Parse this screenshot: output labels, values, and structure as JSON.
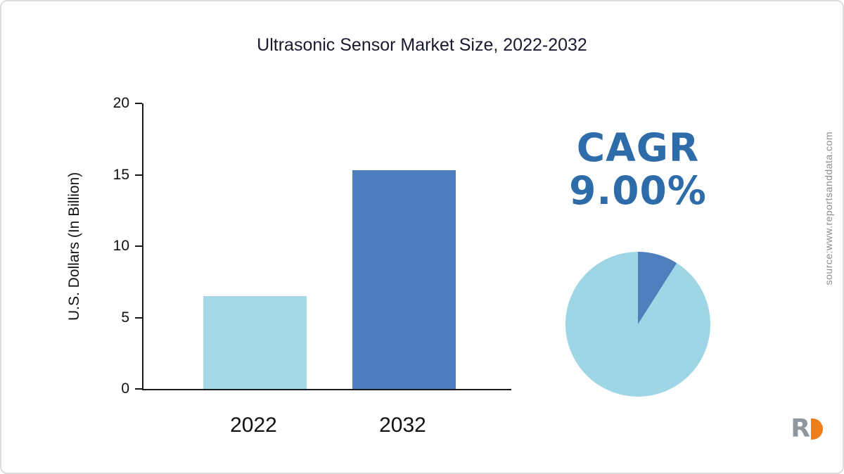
{
  "chart_data": [
    {
      "type": "bar",
      "title": "Ultrasonic Sensor Market Size, 2022-2032",
      "categories": [
        "2022",
        "2032"
      ],
      "values": [
        6.5,
        15.3
      ],
      "xlabel": "",
      "ylabel": "U.S. Dollars (In Billion)",
      "ylim": [
        0,
        20
      ],
      "yticks": [
        0,
        5,
        10,
        15,
        20
      ],
      "colors": [
        "#a5d9e7",
        "#4d7ebf"
      ],
      "grid": false,
      "legend": "none"
    },
    {
      "type": "pie",
      "labels": [
        "CAGR slice",
        "remainder"
      ],
      "values": [
        9,
        91
      ],
      "colors": [
        "#4f7fbd",
        "#9ed6e6"
      ],
      "annotation": {
        "line1": "CAGR",
        "line2": "9.00%"
      },
      "annotation_color": "#2d6ca8"
    }
  ],
  "source": {
    "text": "source:www.reportsanddata.com"
  },
  "logo": {
    "letter": "R"
  }
}
